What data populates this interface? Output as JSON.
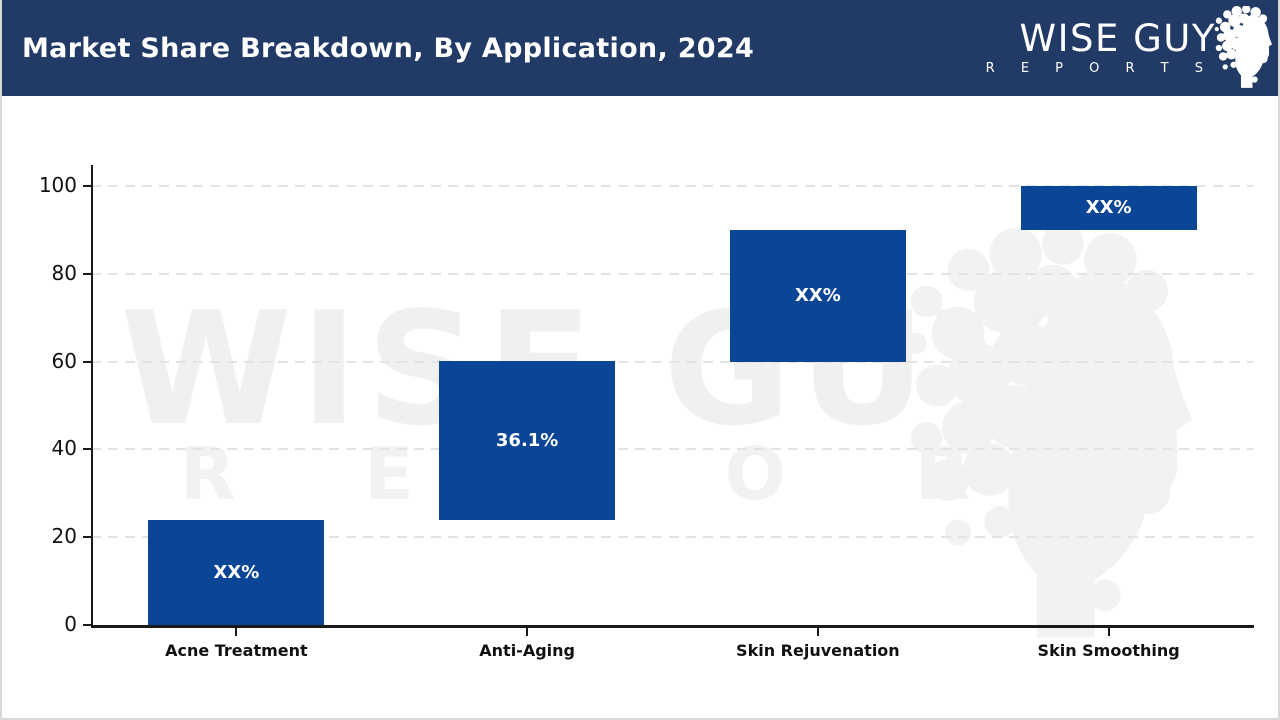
{
  "header": {
    "title": "Market Share Breakdown, By Application, 2024",
    "bg_color": "#213A66",
    "text_color": "#FFFFFF",
    "logo": {
      "line1": "WISE GUY",
      "line2": "R E P O R T S"
    }
  },
  "watermark": {
    "line1": "WISE GUY",
    "line2": "R E P O R T S"
  },
  "chart_data": {
    "type": "bar",
    "subtype": "waterfall",
    "title": "Market Share Breakdown, By Application, 2024",
    "categories": [
      "Acne Treatment",
      "Anti-Aging",
      "Skin Rejuvenation",
      "Skin Smoothing"
    ],
    "segments": [
      {
        "category": "Acne Treatment",
        "start": 0,
        "end": 24,
        "label": "XX%"
      },
      {
        "category": "Anti-Aging",
        "start": 24,
        "end": 60.1,
        "label": "36.1%"
      },
      {
        "category": "Skin Rejuvenation",
        "start": 60,
        "end": 90,
        "label": "XX%"
      },
      {
        "category": "Skin Smoothing",
        "start": 90,
        "end": 100,
        "label": "XX%"
      }
    ],
    "xlabel": "",
    "ylabel": "",
    "ylim": [
      0,
      105
    ],
    "yticks": [
      0,
      20,
      40,
      60,
      80,
      100
    ],
    "grid": "horizontal-dashed",
    "legend": "none",
    "bar_color": "#0A4596",
    "bar_label_color": "#FFFFFF",
    "axis_color": "#1A1A1A",
    "gridline_color": "#E3E3E3"
  }
}
